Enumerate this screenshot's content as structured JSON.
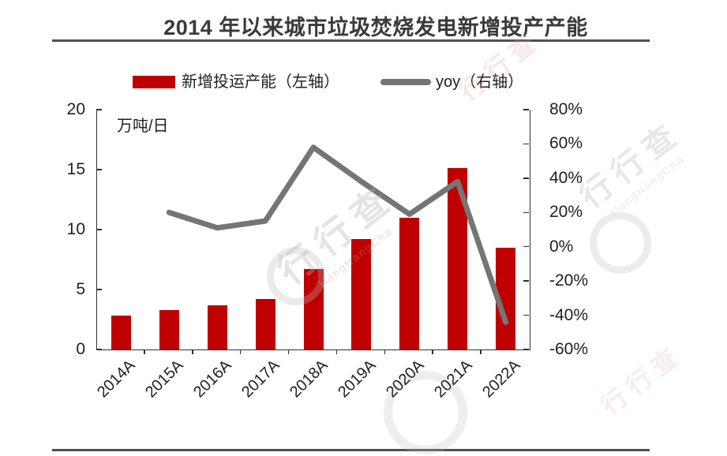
{
  "title": {
    "text": "2014 年以来城市垃圾焚烧发电新增投产产能"
  },
  "legend": [
    {
      "label": "新增投运产能（左轴）",
      "type": "bar"
    },
    {
      "label": "yoy（右轴）",
      "type": "line"
    }
  ],
  "chart_data": {
    "type": "bar+line combo",
    "categories": [
      "2014A",
      "2015A",
      "2016A",
      "2017A",
      "2018A",
      "2019A",
      "2020A",
      "2021A",
      "2022A"
    ],
    "series": [
      {
        "name": "新增投运产能（左轴）",
        "type": "bar",
        "axis": "left",
        "values": [
          2.8,
          3.3,
          3.7,
          4.2,
          6.7,
          9.2,
          11.0,
          15.1,
          8.5
        ]
      },
      {
        "name": "yoy（右轴）",
        "type": "line",
        "axis": "right",
        "unit": "%",
        "values": [
          null,
          20,
          11,
          15,
          58,
          38,
          19,
          38,
          -44
        ]
      }
    ],
    "title": "2014 年以来城市垃圾焚烧发电新增投产产能",
    "left_axis": {
      "label": "万吨/日",
      "min": 0,
      "max": 20,
      "step": 5,
      "tick_values": [
        20,
        15,
        10,
        5,
        0
      ],
      "tick_labels": [
        "20",
        "15",
        "10",
        "5",
        "0"
      ]
    },
    "right_axis": {
      "label": "",
      "min": -60,
      "max": 80,
      "step": 20,
      "tick_values": [
        80,
        60,
        40,
        20,
        0,
        -20,
        -40,
        -60
      ],
      "tick_labels": [
        "80%",
        "60%",
        "40%",
        "20%",
        "0%",
        "-20%",
        "-40%",
        "-60%"
      ]
    },
    "grid": false,
    "legend_position": "top"
  },
  "colors": {
    "bar": "#c00000",
    "line": "#757575",
    "axis": "#303030",
    "text": "#1f1f1f",
    "title": "#3a3a3a",
    "rule": "#4f4f4f"
  },
  "watermark": {
    "text": "行行查",
    "sub": "HangHangCha"
  }
}
